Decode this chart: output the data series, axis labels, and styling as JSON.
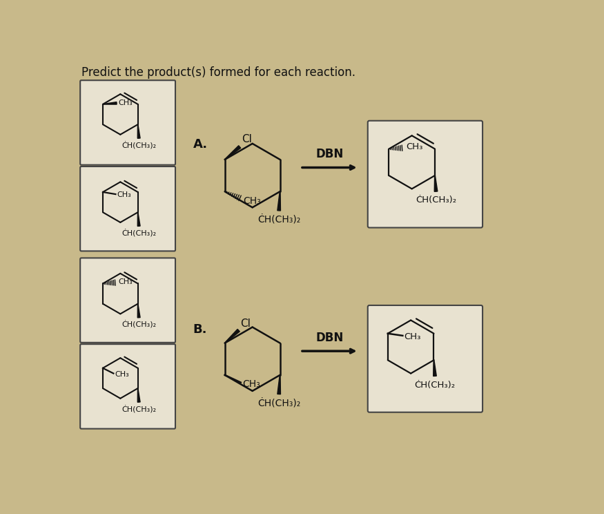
{
  "title": "Predict the product(s) formed for each reaction.",
  "title_fontsize": 12,
  "background_color": "#c8b98a",
  "box_facecolor": "#e8e2d0",
  "box_edge_color": "#444444",
  "text_color": "#111111",
  "arrow_color": "#111111",
  "dbn_label": "DBN",
  "reaction_A_label": "A.",
  "reaction_B_label": "B.",
  "white_bg": "#f0ece0",
  "page_bg": "#d0c49a"
}
